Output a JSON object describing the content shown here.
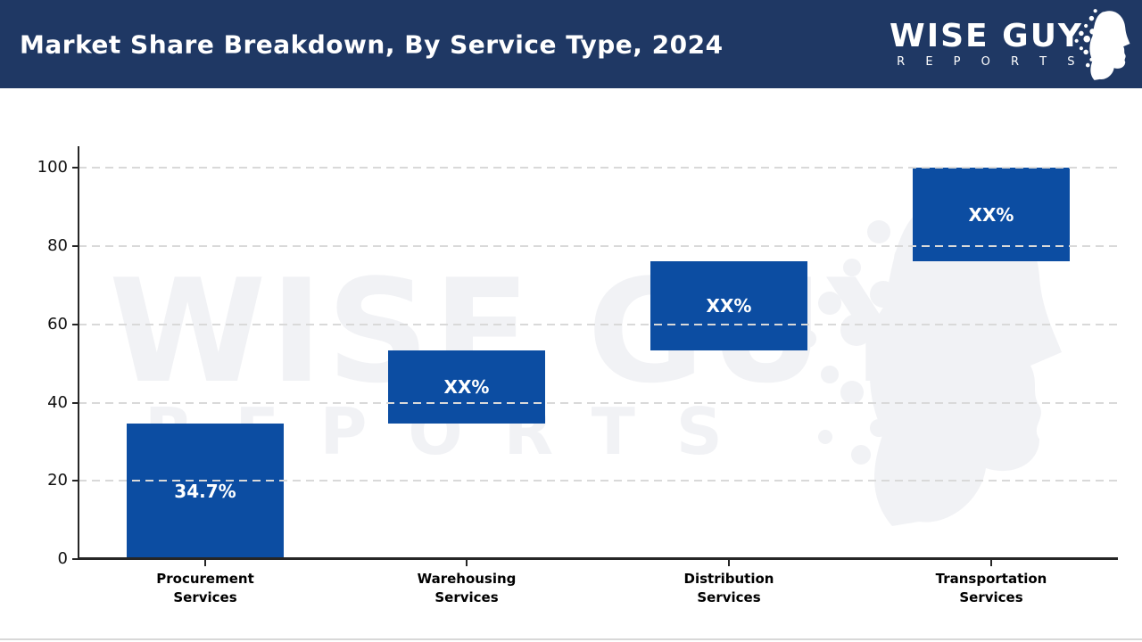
{
  "header": {
    "title": "Market Share Breakdown, By Service Type, 2024"
  },
  "brand": {
    "name": "WISE GUY",
    "sub": "R E P O R T S",
    "icon": "wiseguy-face-dots-icon"
  },
  "watermark": {
    "line1": "WISE GUY",
    "line2": "REPORTS",
    "icon": "wiseguy-face-dots-icon"
  },
  "chart_data": {
    "type": "bar",
    "variant": "waterfall",
    "title": "Market Share Breakdown, By Service Type, 2024",
    "categories": [
      [
        "Procurement",
        "Services"
      ],
      [
        "Warehousing",
        "Services"
      ],
      [
        "Distribution",
        "Services"
      ],
      [
        "Transportation",
        "Services"
      ]
    ],
    "segments": [
      {
        "start": 0,
        "end": 34.7,
        "label": "34.7%"
      },
      {
        "start": 34.7,
        "end": 53.3,
        "label": "XX%"
      },
      {
        "start": 53.3,
        "end": 76.1,
        "label": "XX%"
      },
      {
        "start": 76.1,
        "end": 100,
        "label": "XX%"
      }
    ],
    "y_ticks": [
      0,
      20,
      40,
      60,
      80,
      100
    ],
    "ylim": [
      0,
      105
    ],
    "xlabel": "",
    "ylabel": "",
    "grid": "dashed-horizontal",
    "legend": "none",
    "bar_color": "#0c4da2",
    "bar_label_color": "#ffffff",
    "header_color": "#1f3864",
    "watermark_color": "#f1f2f5"
  }
}
